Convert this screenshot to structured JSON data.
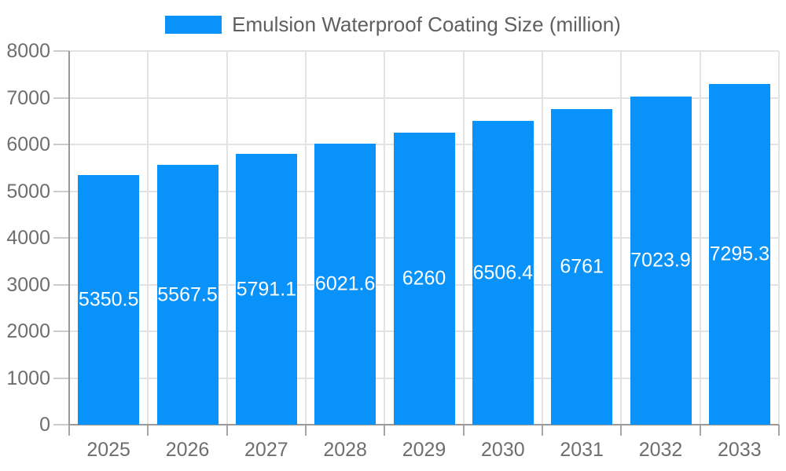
{
  "legend": {
    "label": "Emulsion Waterproof Coating Size (million)"
  },
  "colors": {
    "bar": "#0892fa",
    "grid": "#e3e3e3",
    "axis_line": "#999999",
    "y_tick": "#cccccc",
    "x_tick": "#a6a6a6",
    "axis_text": "#6e6e6e",
    "legend_text": "#5f5f5f",
    "value_text": "#ffffff",
    "background": "#ffffff"
  },
  "chart_data": {
    "type": "bar",
    "title": "Emulsion Waterproof Coating Size (million)",
    "categories": [
      "2025",
      "2026",
      "2027",
      "2028",
      "2029",
      "2030",
      "2031",
      "2032",
      "2033"
    ],
    "values": [
      5350.5,
      5567.5,
      5791.1,
      6021.6,
      6260,
      6506.4,
      6761,
      7023.9,
      7295.3
    ],
    "value_labels": [
      "5350.5",
      "5567.5",
      "5791.1",
      "6021.6",
      "6260",
      "6506.4",
      "6761",
      "7023.9",
      "7295.3"
    ],
    "xlabel": "",
    "ylabel": "",
    "ylim": [
      0,
      8000
    ],
    "y_ticks": [
      0,
      1000,
      2000,
      3000,
      4000,
      5000,
      6000,
      7000,
      8000
    ],
    "grid": true,
    "legend_position": "top",
    "value_label_position": "inside-center"
  }
}
